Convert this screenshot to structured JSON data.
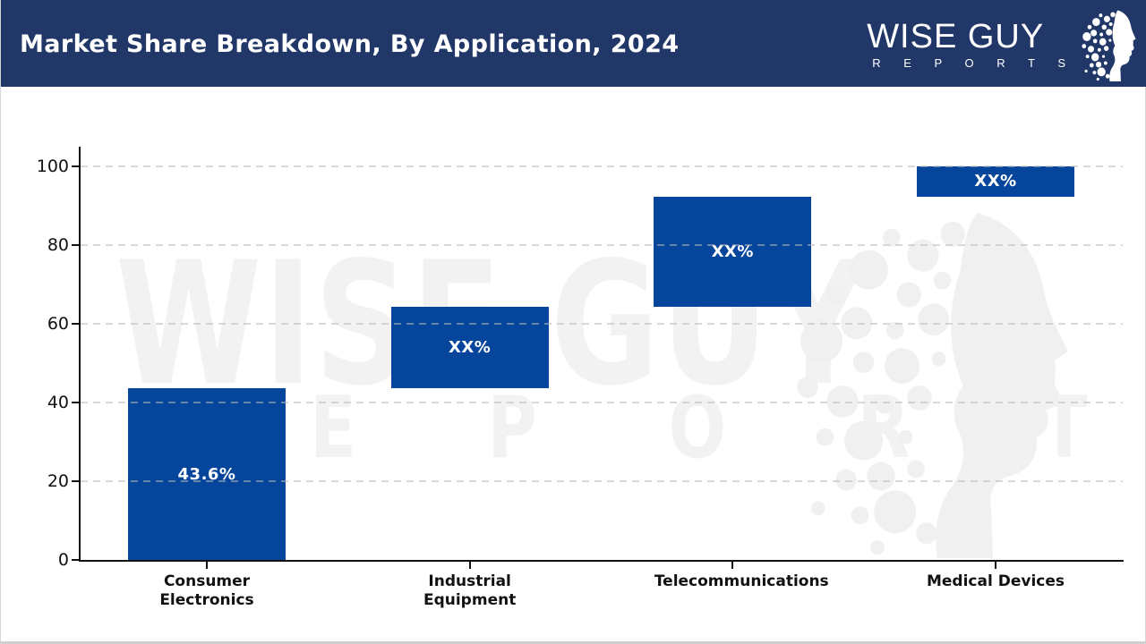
{
  "header": {
    "title": "Market Share Breakdown, By Application, 2024",
    "bg_color": "#213768",
    "logo": {
      "line1": "WISE GUY",
      "line2": "R E P O R T S",
      "face_icon": "dotted-head-profile"
    }
  },
  "watermark": {
    "line1": "WISE GUY",
    "line2": "R E P O R T S",
    "face_icon": "dotted-head-profile"
  },
  "chart_data": {
    "type": "bar",
    "subtype": "waterfall",
    "title": "Market Share Breakdown, By Application, 2024",
    "categories": [
      "Consumer Electronics",
      "Industrial Equipment",
      "Telecommunications",
      "Medical Devices"
    ],
    "segments": [
      {
        "category": "Consumer Electronics",
        "start": 0,
        "end": 43.6,
        "label": "43.6%"
      },
      {
        "category": "Industrial Equipment",
        "start": 43.6,
        "end": 64.3,
        "label": "XX%"
      },
      {
        "category": "Telecommunications",
        "start": 64.3,
        "end": 92.3,
        "label": "XX%"
      },
      {
        "category": "Medical Devices",
        "start": 92.3,
        "end": 100.0,
        "label": "XX%"
      }
    ],
    "xlabel": "",
    "ylabel": "",
    "yticks": [
      0,
      20,
      40,
      60,
      80,
      100
    ],
    "ylim": [
      0,
      104
    ],
    "grid": "dashed-horizontal",
    "grid_over_bars": true,
    "legend": "none",
    "bar_color": "#05459c",
    "bar_label_color": "#ffffff",
    "axis_color": "#111111"
  }
}
